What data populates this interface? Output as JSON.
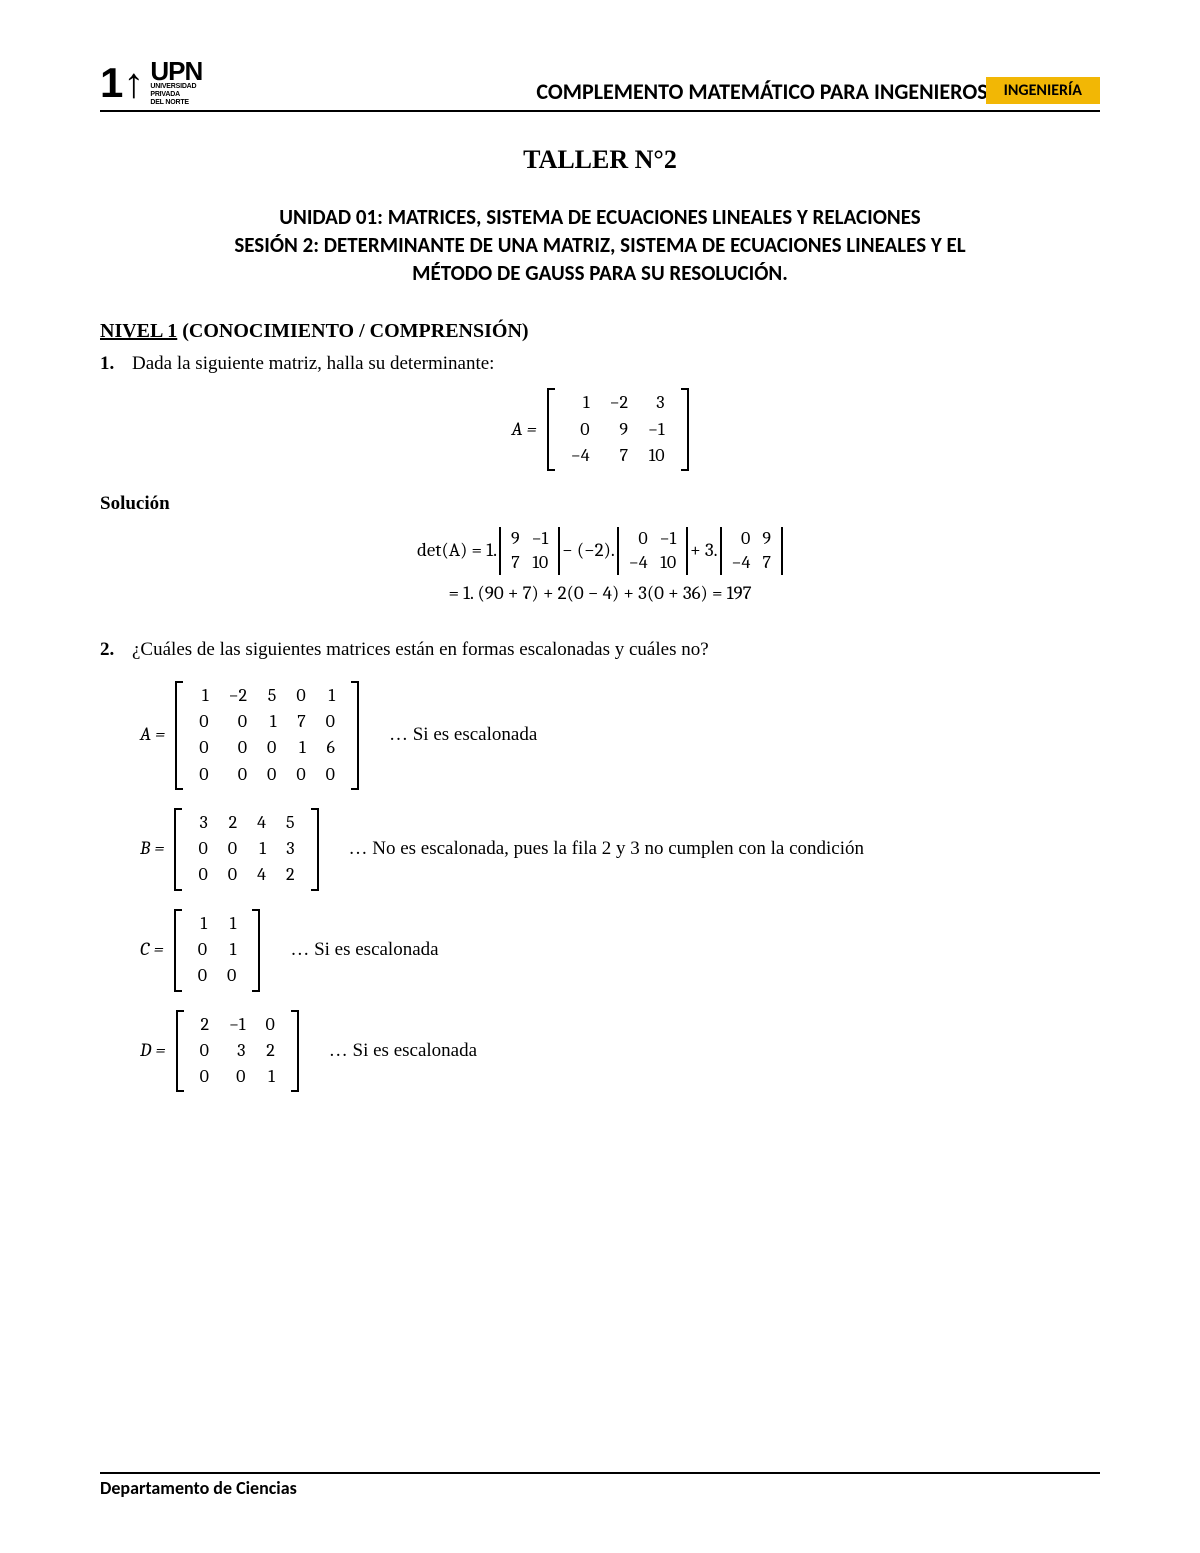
{
  "header": {
    "logo_brand": "UPN",
    "logo_sub1": "UNIVERSIDAD",
    "logo_sub2": "PRIVADA",
    "logo_sub3": "DEL NORTE",
    "course_title": "COMPLEMENTO MATEMÁTICO PARA INGENIEROS",
    "badge": "INGENIERÍA",
    "badge_bg": "#f2b705"
  },
  "title": "TALLER N°2",
  "unit_line1": "UNIDAD 01: MATRICES, SISTEMA DE ECUACIONES LINEALES Y RELACIONES",
  "unit_line2": "SESIÓN 2: DETERMINANTE DE UNA MATRIZ, SISTEMA DE ECUACIONES LINEALES Y EL",
  "unit_line3": "MÉTODO DE GAUSS PARA SU RESOLUCIÓN.",
  "level_label": "NIVEL 1",
  "level_desc": "(CONOCIMIENTO / COMPRENSIÓN)",
  "q1": {
    "num": "1.",
    "text": "Dada la siguiente matriz, halla su determinante:",
    "matrix_name": "A =",
    "matrix": [
      [
        "1",
        "−2",
        "3"
      ],
      [
        "0",
        "9",
        "−1"
      ],
      [
        "−4",
        "7",
        "10"
      ]
    ],
    "solucion_label": "Solución",
    "det_prefix": "det(A) = 1.",
    "m1": [
      [
        "9",
        "−1"
      ],
      [
        "7",
        "10"
      ]
    ],
    "op1": " − (−2).",
    "m2": [
      [
        "0",
        "−1"
      ],
      [
        "−4",
        "10"
      ]
    ],
    "op2": " + 3.",
    "m3": [
      [
        "0",
        "9"
      ],
      [
        "−4",
        "7"
      ]
    ],
    "det_line2": "= 1. (90 + 7) + 2(0 − 4) + 3(0 + 36) = 197"
  },
  "q2": {
    "num": "2.",
    "text": "¿Cuáles de las siguientes matrices están en formas escalonadas y cuáles no?",
    "items": [
      {
        "name": "A =",
        "matrix": [
          [
            "1",
            "−2",
            "5",
            "0",
            "1"
          ],
          [
            "0",
            "0",
            "1",
            "7",
            "0"
          ],
          [
            "0",
            "0",
            "0",
            "1",
            "6"
          ],
          [
            "0",
            "0",
            "0",
            "0",
            "0"
          ]
        ],
        "annot": "… Si es escalonada"
      },
      {
        "name": "B =",
        "matrix": [
          [
            "3",
            "2",
            "4",
            "5"
          ],
          [
            "0",
            "0",
            "1",
            "3"
          ],
          [
            "0",
            "0",
            "4",
            "2"
          ]
        ],
        "annot": "… No es escalonada, pues la fila 2 y 3 no cumplen con la condición"
      },
      {
        "name": "C =",
        "matrix": [
          [
            "1",
            "1"
          ],
          [
            "0",
            "1"
          ],
          [
            "0",
            "0"
          ]
        ],
        "annot": "… Si es escalonada"
      },
      {
        "name": "D =",
        "matrix": [
          [
            "2",
            "−1",
            "0"
          ],
          [
            "0",
            "3",
            "2"
          ],
          [
            "0",
            "0",
            "1"
          ]
        ],
        "annot": "… Si es escalonada"
      }
    ]
  },
  "footer": "Departamento de Ciencias"
}
